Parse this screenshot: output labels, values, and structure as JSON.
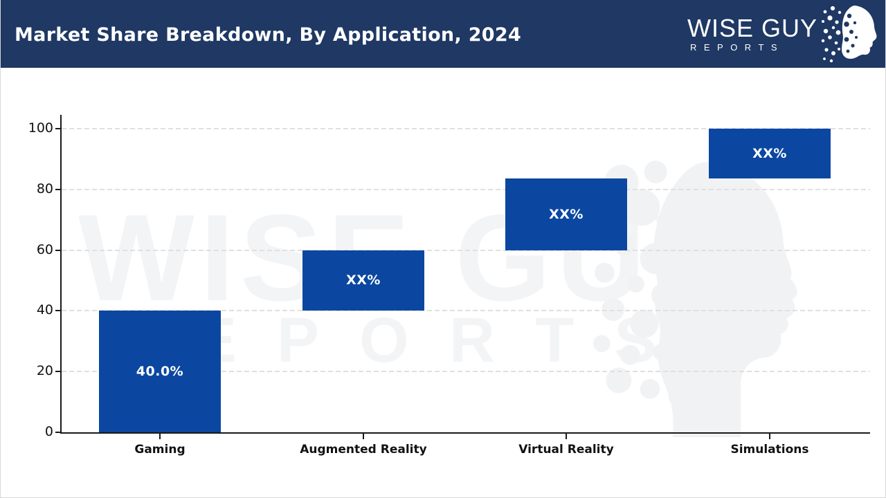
{
  "header": {
    "title": "Market Share Breakdown, By Application, 2024",
    "bg_color": "#1f3864",
    "logo": {
      "line1": "WISE GUY",
      "line2": "REPORTS"
    }
  },
  "watermark": {
    "line1": "WISE GUY",
    "line2": "REPORTS"
  },
  "chart_data": {
    "type": "bar",
    "subtype": "waterfall",
    "title": "Market Share Breakdown, By Application, 2024",
    "categories": [
      "Gaming",
      "Augmented Reality",
      "Virtual Reality",
      "Simulations"
    ],
    "segments": [
      {
        "category": "Gaming",
        "start": 0,
        "end": 40,
        "value": 40,
        "label": "40.0%"
      },
      {
        "category": "Augmented Reality",
        "start": 40,
        "end": 60,
        "value": 20,
        "label": "XX%"
      },
      {
        "category": "Virtual Reality",
        "start": 60,
        "end": 83.5,
        "value": 23.5,
        "label": "XX%"
      },
      {
        "category": "Simulations",
        "start": 83.5,
        "end": 100,
        "value": 16.5,
        "label": "XX%"
      }
    ],
    "xlabel": "",
    "ylabel": "",
    "ylim": [
      0,
      104.5
    ],
    "yticks": [
      0,
      20,
      40,
      60,
      80,
      100
    ],
    "ytick_labels": [
      "0",
      "20",
      "40",
      "60",
      "80",
      "100"
    ],
    "grid": "horizontal-dashed",
    "legend": "none",
    "bar_color": "#0b47a1",
    "bar_label_color": "#ffffff",
    "axis_color": "#1a1a1a",
    "gridline_color": "#e0e0e0",
    "watermark_color": "#f3f4f6"
  }
}
